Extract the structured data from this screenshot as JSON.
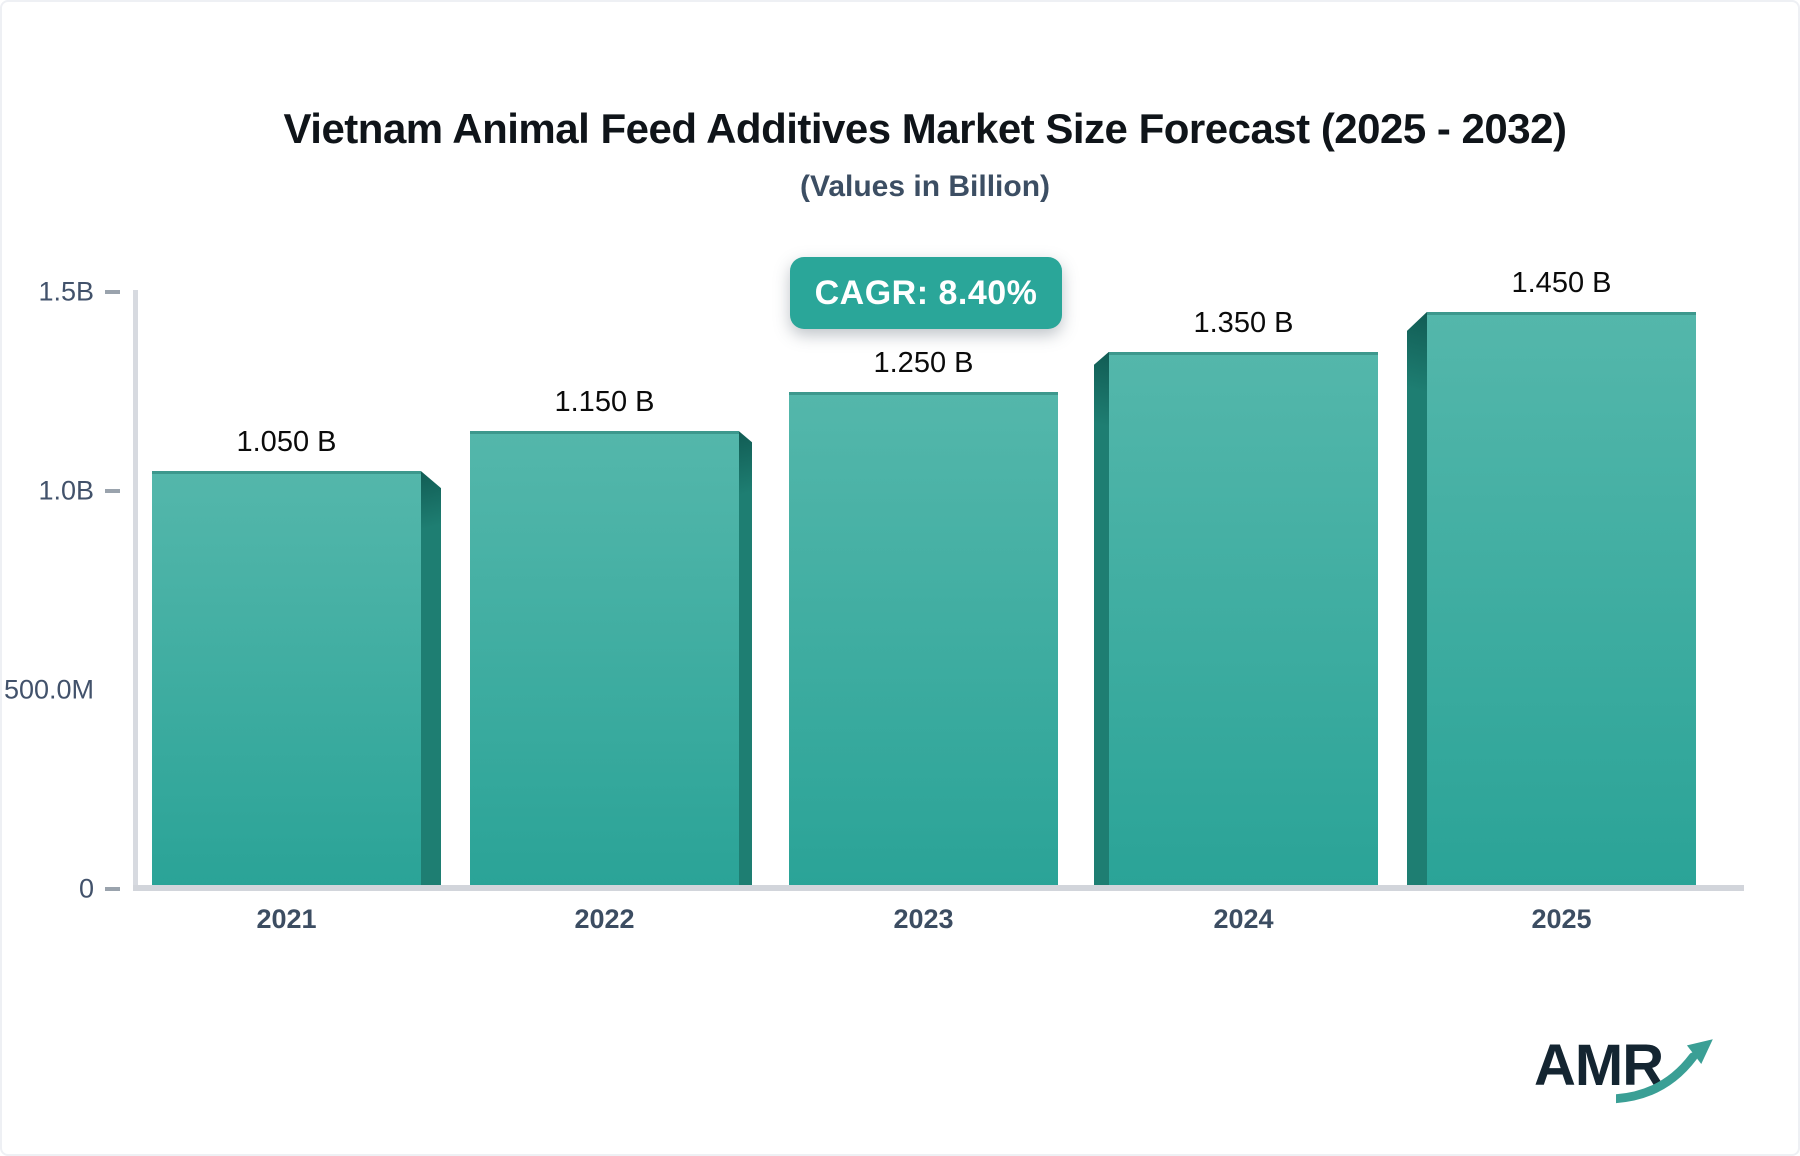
{
  "card": {
    "logo_text": "AMR",
    "accent_color": "#2aa699",
    "background_color": "#ffffff"
  },
  "chart_data": {
    "type": "bar",
    "title": "Vietnam Animal Feed Additives Market Size Forecast (2025 - 2032)",
    "subtitle": "(Values in Billion)",
    "cagr_label": "CAGR: 8.40%",
    "unit": "Billion",
    "categories": [
      "2021",
      "2022",
      "2023",
      "2024",
      "2025"
    ],
    "values": [
      1.05,
      1.15,
      1.25,
      1.35,
      1.45
    ],
    "value_labels": [
      "1.050 B",
      "1.150 B",
      "1.250 B",
      "1.350 B",
      "1.450 B"
    ],
    "xlabel": "",
    "ylabel": "",
    "ylim": [
      0,
      1.5
    ],
    "y_ticks": [
      {
        "label": "1.5B",
        "value": 1.5,
        "dash": true
      },
      {
        "label": "1.0B",
        "value": 1.0,
        "dash": true
      },
      {
        "label": "500.0M",
        "value": 0.5,
        "dash": false
      },
      {
        "label": "0",
        "value": 0.0,
        "dash": true
      }
    ],
    "grid": false,
    "legend": false,
    "bar_color_top": "#54b7ab",
    "bar_color_bottom": "#2aa397",
    "bar_side_color": "#1e7e72",
    "bar_side_color_dark": "#115c54"
  }
}
